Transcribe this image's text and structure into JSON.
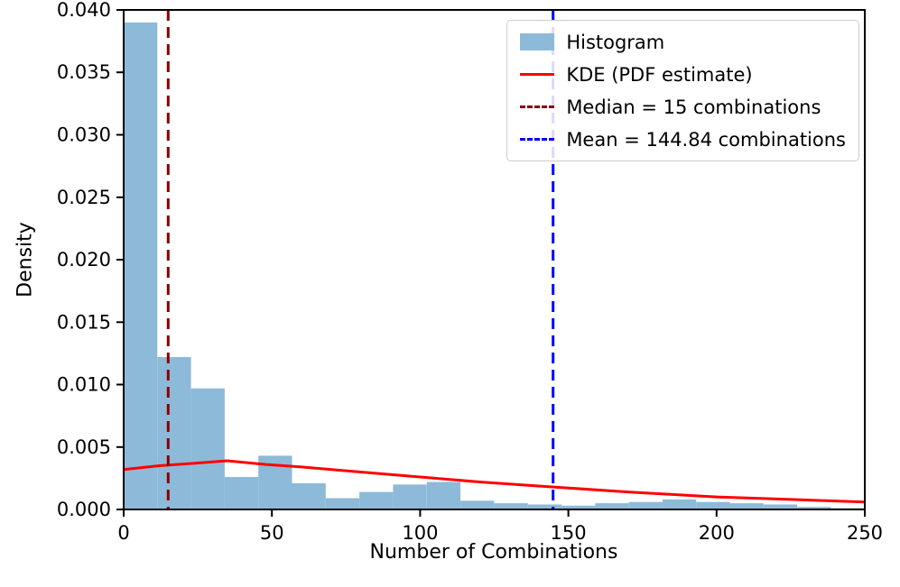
{
  "chart_data": {
    "type": "bar",
    "subtype": "histogram-with-kde",
    "title": "",
    "xlabel": "Number of Combinations",
    "ylabel": "Density",
    "xlim": [
      0,
      250
    ],
    "ylim": [
      0,
      0.04
    ],
    "xticks": [
      0,
      50,
      100,
      150,
      200,
      250
    ],
    "xticklabels": [
      "0",
      "50",
      "100",
      "150",
      "200",
      "250"
    ],
    "yticks": [
      0,
      0.005,
      0.01,
      0.015,
      0.02,
      0.025,
      0.03,
      0.035,
      0.04
    ],
    "yticklabels": [
      "0.000",
      "0.005",
      "0.010",
      "0.015",
      "0.020",
      "0.025",
      "0.030",
      "0.035",
      "0.040"
    ],
    "grid": false,
    "legend_position": "upper right",
    "histogram": {
      "bin_start": 0,
      "bin_width": 11.36,
      "densities": [
        0.039,
        0.0122,
        0.0097,
        0.0026,
        0.0043,
        0.0021,
        0.0009,
        0.0014,
        0.002,
        0.0022,
        0.0007,
        0.0005,
        0.0004,
        0.0003,
        0.0005,
        0.0006,
        0.0008,
        0.0006,
        0.0005,
        0.0004,
        0.0002,
        0.0001
      ],
      "color": "#8ebad9"
    },
    "kde": {
      "x": [
        0,
        12,
        24,
        35,
        48,
        60,
        80,
        100,
        120,
        145,
        170,
        200,
        225,
        250
      ],
      "y": [
        0.0032,
        0.0035,
        0.0037,
        0.0039,
        0.0036,
        0.0034,
        0.003,
        0.0026,
        0.0022,
        0.0018,
        0.0014,
        0.001,
        0.0008,
        0.0006
      ],
      "color": "#ff0000"
    },
    "median_line": {
      "value": 15,
      "color": "#8b0000",
      "style": "dashed"
    },
    "mean_line": {
      "value": 144.84,
      "color": "#0000ff",
      "style": "dashed"
    },
    "legend": [
      {
        "label": "Histogram",
        "handle": "patch",
        "color": "#8ebad9"
      },
      {
        "label": "KDE (PDF estimate)",
        "handle": "line",
        "color": "#ff0000"
      },
      {
        "label": "Median = 15 combinations",
        "handle": "dashed",
        "color": "#8b0000"
      },
      {
        "label": "Mean = 144.84 combinations",
        "handle": "dashed",
        "color": "#0000ff"
      }
    ]
  }
}
